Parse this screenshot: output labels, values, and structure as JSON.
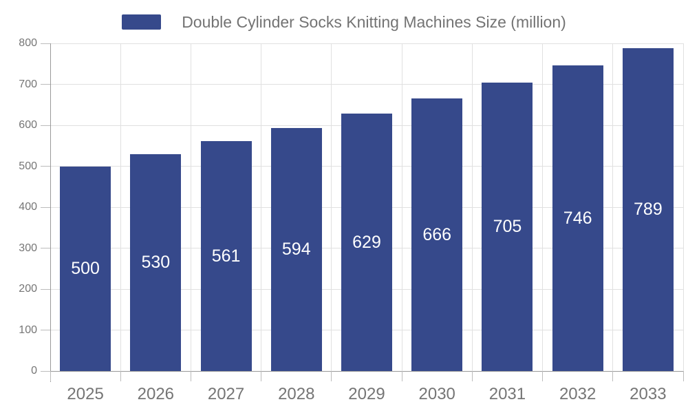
{
  "chart_data": {
    "type": "bar",
    "title": "Double Cylinder Socks Knitting Machines Size (million)",
    "legend": {
      "label": "Double Cylinder Socks Knitting Machines Size (million)",
      "position": "top-center"
    },
    "categories": [
      "2025",
      "2026",
      "2027",
      "2028",
      "2029",
      "2030",
      "2031",
      "2032",
      "2033"
    ],
    "series": [
      {
        "name": "Double Cylinder Socks Knitting Machines Size (million)",
        "values": [
          500,
          530,
          561,
          594,
          629,
          666,
          705,
          746,
          789
        ]
      }
    ],
    "xlabel": "",
    "ylabel": "",
    "ylim": [
      0,
      800
    ],
    "yticks": [
      0,
      100,
      200,
      300,
      400,
      500,
      600,
      700,
      800
    ],
    "grid": true,
    "value_labels": "inside-center",
    "colors": {
      "bar": "#36498b",
      "legend_text": "#737373",
      "axis_text": "#757575",
      "grid_line": "#e0e0e0",
      "axis_line": "#999999",
      "tick_line": "#bbbbbb",
      "value_label_text": "#ffffff",
      "background": "#ffffff"
    }
  }
}
